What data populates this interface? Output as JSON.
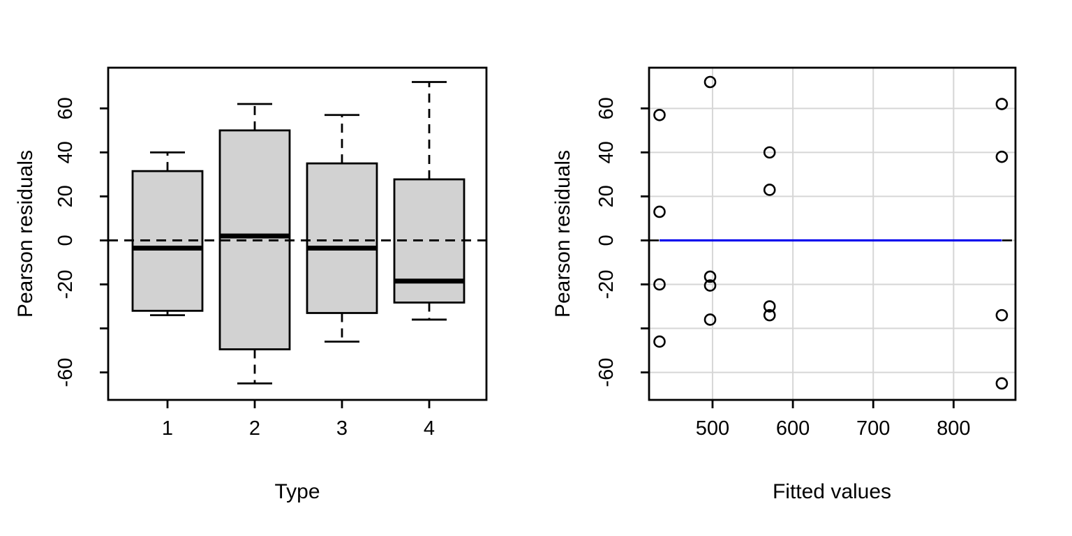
{
  "chart_data": [
    {
      "type": "boxplot",
      "title": "",
      "xlabel": "Type",
      "ylabel": "Pearson residuals",
      "categories": [
        "1",
        "2",
        "3",
        "4"
      ],
      "ylim": [
        -72.5,
        78.5
      ],
      "y_ticks": {
        "values": [
          60,
          40,
          20,
          0,
          -20,
          -40,
          -60
        ],
        "labels": [
          "60",
          "40",
          "20",
          "0",
          "-20",
          "",
          "-60"
        ]
      },
      "grid": false,
      "reference_line": {
        "y": 0,
        "style": "dashed",
        "color": "#000000"
      },
      "box_fill": "#D2D2D2",
      "box_border": "#000000",
      "boxes": [
        {
          "category": "1",
          "whisker_low": -34,
          "q1": -32,
          "median": -3.5,
          "q3": 31.5,
          "whisker_high": 40
        },
        {
          "category": "2",
          "whisker_low": -65,
          "q1": -49.5,
          "median": 2,
          "q3": 50,
          "whisker_high": 62
        },
        {
          "category": "3",
          "whisker_low": -46,
          "q1": -33,
          "median": -3.5,
          "q3": 35,
          "whisker_high": 57
        },
        {
          "category": "4",
          "whisker_low": -36,
          "q1": -28.25,
          "median": -18.5,
          "q3": 27.75,
          "whisker_high": 72
        }
      ]
    },
    {
      "type": "scatter",
      "title": "",
      "xlabel": "Fitted values",
      "ylabel": "Pearson residuals",
      "xlim": [
        421,
        877
      ],
      "ylim": [
        -72.5,
        78.5
      ],
      "x_ticks": {
        "values": [
          500,
          600,
          700,
          800
        ],
        "labels": [
          "500",
          "600",
          "700",
          "800"
        ]
      },
      "y_ticks": {
        "values": [
          60,
          40,
          20,
          0,
          -20,
          -40,
          -60
        ],
        "labels": [
          "60",
          "40",
          "20",
          "0",
          "-20",
          "",
          "-60"
        ]
      },
      "grid": true,
      "grid_color": "#D6D6D6",
      "zero_line": {
        "y": 0,
        "style": "dashed",
        "color": "#000000"
      },
      "smooth_line": {
        "y": 0,
        "x_start": 434,
        "x_end": 860,
        "color": "#0000EE"
      },
      "point_color": "#000000",
      "points": [
        {
          "x": 434,
          "y": 57
        },
        {
          "x": 434,
          "y": 13
        },
        {
          "x": 434,
          "y": -20
        },
        {
          "x": 434,
          "y": -46
        },
        {
          "x": 497,
          "y": 72
        },
        {
          "x": 497,
          "y": -16.5
        },
        {
          "x": 497,
          "y": -20.5
        },
        {
          "x": 497,
          "y": -36
        },
        {
          "x": 571,
          "y": 40
        },
        {
          "x": 571,
          "y": 23
        },
        {
          "x": 571,
          "y": -30
        },
        {
          "x": 571,
          "y": -34
        },
        {
          "x": 860,
          "y": 62
        },
        {
          "x": 860,
          "y": 38
        },
        {
          "x": 860,
          "y": -34
        },
        {
          "x": 860,
          "y": -65
        }
      ]
    }
  ]
}
